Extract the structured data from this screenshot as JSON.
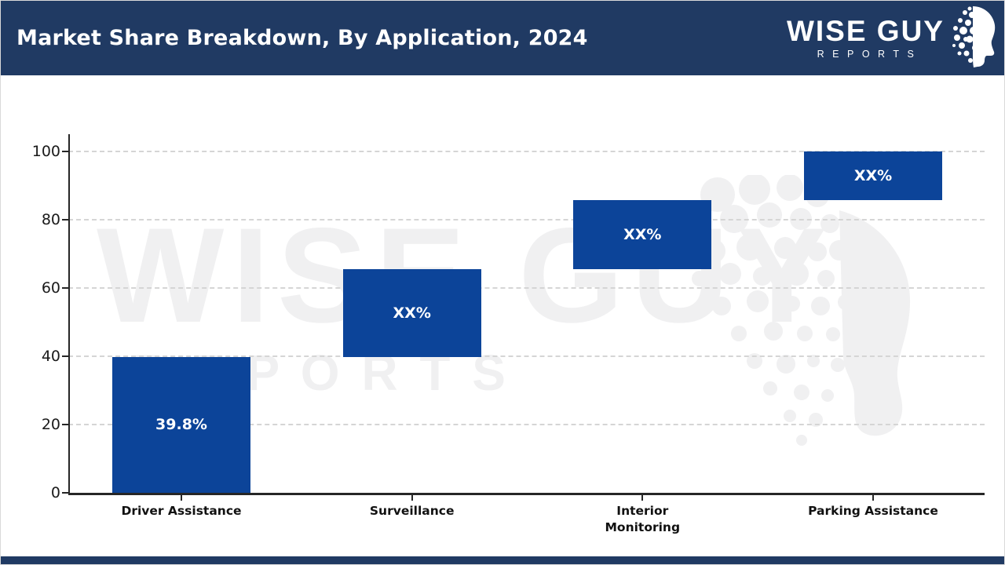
{
  "header": {
    "title": "Market Share Breakdown, By Application, 2024",
    "logo": {
      "line1": "WISE GUY",
      "line2": "REPORTS"
    }
  },
  "watermark": {
    "line1": "WISE GUY",
    "line2": "R E P O R T S"
  },
  "colors": {
    "header_bg": "#203A63",
    "footer_bg": "#203A63",
    "bar": "#0C4499",
    "bar_label": "#FFFFFF",
    "axis": "#262626",
    "grid": "#D5D5D5",
    "tick_text": "#1A1A1A",
    "watermark": "#F0F0F1",
    "body_bg": "#FFFFFF"
  },
  "chart_data": {
    "type": "bar",
    "variant": "waterfall-market-share",
    "title": "Market Share Breakdown, By Application, 2024",
    "categories": [
      "Driver Assistance",
      "Surveillance",
      "Interior Monitoring",
      "Parking Assistance"
    ],
    "segments": [
      {
        "category": "Driver Assistance",
        "tick_label": "Driver Assistance",
        "from": 0,
        "to": 39.8,
        "label": "39.8%"
      },
      {
        "category": "Surveillance",
        "tick_label": "Surveillance",
        "from": 39.8,
        "to": 65.5,
        "label": "XX%"
      },
      {
        "category": "Interior Monitoring",
        "tick_label": "Interior\nMonitoring",
        "from": 65.5,
        "to": 85.8,
        "label": "XX%"
      },
      {
        "category": "Parking Assistance",
        "tick_label": "Parking Assistance",
        "from": 85.8,
        "to": 100,
        "label": "XX%"
      }
    ],
    "yticks": [
      0,
      20,
      40,
      60,
      80,
      100
    ],
    "ylim": [
      0,
      100
    ],
    "xlabel": "",
    "ylabel": "",
    "grid": "dashed-horizontal",
    "legend": "none"
  }
}
